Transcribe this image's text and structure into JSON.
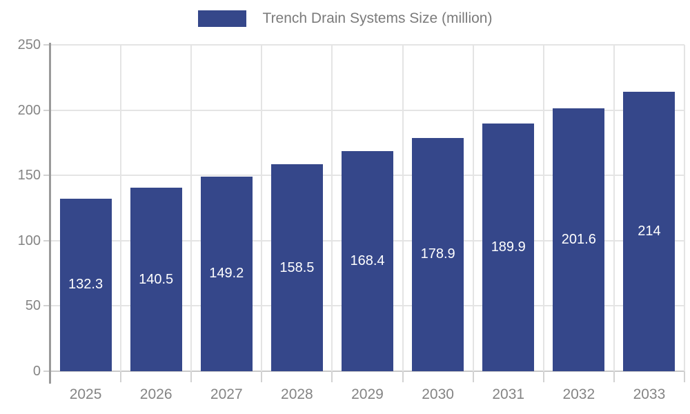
{
  "chart_data": {
    "type": "bar",
    "title": "",
    "series_name": "Trench Drain Systems Size (million)",
    "categories": [
      "2025",
      "2026",
      "2027",
      "2028",
      "2029",
      "2030",
      "2031",
      "2032",
      "2033"
    ],
    "values": [
      132.3,
      140.5,
      149.2,
      158.5,
      168.4,
      178.9,
      189.9,
      201.6,
      214
    ],
    "yticks": [
      0,
      50,
      100,
      150,
      200,
      250
    ],
    "ylim": [
      0,
      250
    ],
    "xlabel": "",
    "ylabel": "",
    "grid": true,
    "legend_position": "top"
  },
  "colors": {
    "bar": "#35478a",
    "value_label": "#ffffff",
    "axis_text": "#848484",
    "legend_text": "#7b7b7b",
    "grid": "#e4e4e4",
    "axis_line": "#9a9a9a",
    "zero_line": "#c9c9c9",
    "tick": "#d2d2d2"
  }
}
